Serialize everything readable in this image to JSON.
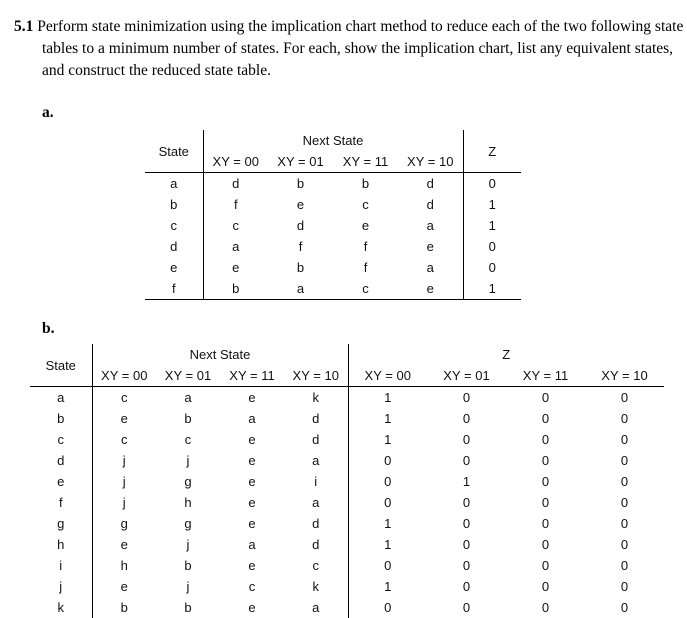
{
  "problem": {
    "number": "5.1",
    "text": "Perform state minimization using the implication chart method to reduce each of the two following state tables to a minimum number of states. For each, show the implication chart, list any equivalent states, and construct the reduced state table."
  },
  "part_a": {
    "label": "a.",
    "table": {
      "state_header": "State",
      "next_state_header": "Next State",
      "z_header": "Z",
      "input_headers": [
        "XY = 00",
        "XY = 01",
        "XY = 11",
        "XY = 10"
      ],
      "rows": [
        {
          "state": "a",
          "next": [
            "d",
            "b",
            "b",
            "d"
          ],
          "z": "0"
        },
        {
          "state": "b",
          "next": [
            "f",
            "e",
            "c",
            "d"
          ],
          "z": "1"
        },
        {
          "state": "c",
          "next": [
            "c",
            "d",
            "e",
            "a"
          ],
          "z": "1"
        },
        {
          "state": "d",
          "next": [
            "a",
            "f",
            "f",
            "e"
          ],
          "z": "0"
        },
        {
          "state": "e",
          "next": [
            "e",
            "b",
            "f",
            "a"
          ],
          "z": "0"
        },
        {
          "state": "f",
          "next": [
            "b",
            "a",
            "c",
            "e"
          ],
          "z": "1"
        }
      ]
    }
  },
  "part_b": {
    "label": "b.",
    "table": {
      "state_header": "State",
      "next_state_header": "Next State",
      "z_header": "Z",
      "input_headers": [
        "XY = 00",
        "XY = 01",
        "XY = 11",
        "XY = 10"
      ],
      "rows": [
        {
          "state": "a",
          "next": [
            "c",
            "a",
            "e",
            "k"
          ],
          "z": [
            "1",
            "0",
            "0",
            "0"
          ]
        },
        {
          "state": "b",
          "next": [
            "e",
            "b",
            "a",
            "d"
          ],
          "z": [
            "1",
            "0",
            "0",
            "0"
          ]
        },
        {
          "state": "c",
          "next": [
            "c",
            "c",
            "e",
            "d"
          ],
          "z": [
            "1",
            "0",
            "0",
            "0"
          ]
        },
        {
          "state": "d",
          "next": [
            "j",
            "j",
            "e",
            "a"
          ],
          "z": [
            "0",
            "0",
            "0",
            "0"
          ]
        },
        {
          "state": "e",
          "next": [
            "j",
            "g",
            "e",
            "i"
          ],
          "z": [
            "0",
            "1",
            "0",
            "0"
          ]
        },
        {
          "state": "f",
          "next": [
            "j",
            "h",
            "e",
            "a"
          ],
          "z": [
            "0",
            "0",
            "0",
            "0"
          ]
        },
        {
          "state": "g",
          "next": [
            "g",
            "g",
            "e",
            "d"
          ],
          "z": [
            "1",
            "0",
            "0",
            "0"
          ]
        },
        {
          "state": "h",
          "next": [
            "e",
            "j",
            "a",
            "d"
          ],
          "z": [
            "1",
            "0",
            "0",
            "0"
          ]
        },
        {
          "state": "i",
          "next": [
            "h",
            "b",
            "e",
            "c"
          ],
          "z": [
            "0",
            "0",
            "0",
            "0"
          ]
        },
        {
          "state": "j",
          "next": [
            "e",
            "j",
            "c",
            "k"
          ],
          "z": [
            "1",
            "0",
            "0",
            "0"
          ]
        },
        {
          "state": "k",
          "next": [
            "b",
            "b",
            "e",
            "a"
          ],
          "z": [
            "0",
            "0",
            "0",
            "0"
          ]
        }
      ]
    }
  }
}
